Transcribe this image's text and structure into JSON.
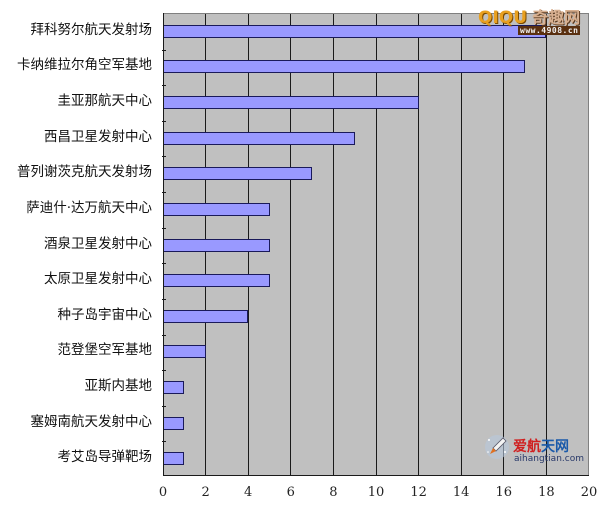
{
  "chart_data": {
    "type": "bar",
    "orientation": "horizontal",
    "title": "",
    "xlabel": "",
    "ylabel": "",
    "categories": [
      "拜科努尔航天发射场",
      "卡纳维拉尔角空军基地",
      "圭亚那航天中心",
      "西昌卫星发射中心",
      "普列谢茨克航天发射场",
      "萨迪什·达万航天中心",
      "酒泉卫星发射中心",
      "太原卫星发射中心",
      "种子岛宇宙中心",
      "范登堡空军基地",
      "亚斯内基地",
      "塞姆南航天发射中心",
      "考艾岛导弹靶场"
    ],
    "values": [
      18,
      17,
      12,
      9,
      7,
      5,
      5,
      5,
      4,
      2,
      1,
      1,
      1
    ],
    "xlim": [
      0,
      20
    ],
    "xticks": [
      "0",
      "2",
      "4",
      "6",
      "8",
      "10",
      "12",
      "14",
      "16",
      "18",
      "20"
    ],
    "grid": "vertical",
    "legend": "none",
    "colors": {
      "bar_fill": "#9999ff",
      "bar_border": "#1a1a5a",
      "plot_background": "#c0c0c0",
      "gridline": "#1a1a1a"
    }
  },
  "watermarks": {
    "top_right": {
      "logo": "QIQU",
      "name": "奇趣网",
      "url": "www.4908.cn"
    },
    "bottom_right": {
      "name_red": "爱航",
      "name_blue": "天网",
      "url": "aihangtian.com"
    }
  }
}
